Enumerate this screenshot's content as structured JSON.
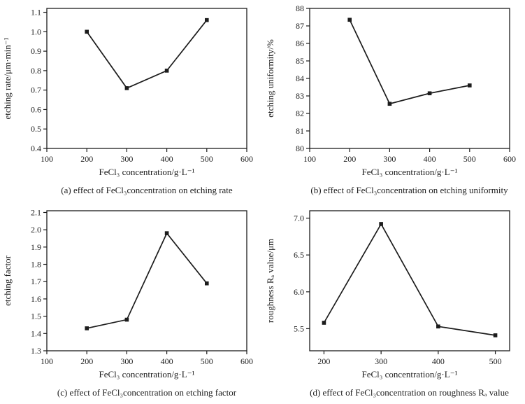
{
  "page": {
    "background": "#ffffff",
    "line_color": "#1c1c1c",
    "text_color": "#1c1c1c"
  },
  "chart_data": [
    {
      "id": "a",
      "type": "line",
      "marker": "square",
      "x": [
        200,
        300,
        400,
        500
      ],
      "values": [
        1.0,
        0.71,
        0.8,
        1.06
      ],
      "xlabel": "FeCl₃ concentration/g·L⁻¹",
      "ylabel": "etching rate/μm·min⁻¹",
      "caption": "(a) effect of FeCl₃concentration on etching rate",
      "xlim": [
        100,
        600
      ],
      "ylim": [
        0.4,
        1.12
      ],
      "xticks": [
        100,
        200,
        300,
        400,
        500,
        600
      ],
      "xtick_labels": [
        "100",
        "200",
        "300",
        "400",
        "500",
        "600"
      ],
      "yticks": [
        0.4,
        0.5,
        0.6,
        0.7,
        0.8,
        0.9,
        1.0,
        1.1
      ],
      "ytick_labels": [
        "0.4",
        "0.5",
        "0.6",
        "0.7",
        "0.8",
        "0.9",
        "1.0",
        "1.1"
      ],
      "grid": false,
      "legend": "none"
    },
    {
      "id": "b",
      "type": "line",
      "marker": "square",
      "x": [
        200,
        300,
        400,
        500
      ],
      "values": [
        87.35,
        82.55,
        83.15,
        83.6
      ],
      "xlabel": "FeCl₃ concentration/g·L⁻¹",
      "ylabel": "etching uniformity/%",
      "caption": "(b) effect of FeCl₃concentration on etching uniformity",
      "xlim": [
        100,
        600
      ],
      "ylim": [
        80,
        88
      ],
      "xticks": [
        100,
        200,
        300,
        400,
        500,
        600
      ],
      "xtick_labels": [
        "100",
        "200",
        "300",
        "400",
        "500",
        "600"
      ],
      "yticks": [
        80,
        81,
        82,
        83,
        84,
        85,
        86,
        87,
        88
      ],
      "ytick_labels": [
        "80",
        "81",
        "82",
        "83",
        "84",
        "85",
        "86",
        "87",
        "88"
      ],
      "grid": false,
      "legend": "none"
    },
    {
      "id": "c",
      "type": "line",
      "marker": "square",
      "x": [
        200,
        300,
        400,
        500
      ],
      "values": [
        1.43,
        1.48,
        1.98,
        1.69
      ],
      "xlabel": "FeCl₃ concentration/g·L⁻¹",
      "ylabel": "etching factor",
      "caption": "(c) effect of FeCl₃concentration on etching factor",
      "xlim": [
        100,
        600
      ],
      "ylim": [
        1.3,
        2.11
      ],
      "xticks": [
        100,
        200,
        300,
        400,
        500,
        600
      ],
      "xtick_labels": [
        "100",
        "200",
        "300",
        "400",
        "500",
        "600"
      ],
      "yticks": [
        1.3,
        1.4,
        1.5,
        1.6,
        1.7,
        1.8,
        1.9,
        2.0,
        2.1
      ],
      "ytick_labels": [
        "1.3",
        "1.4",
        "1.5",
        "1.6",
        "1.7",
        "1.8",
        "1.9",
        "2.0",
        "2.1"
      ],
      "grid": false,
      "legend": "none"
    },
    {
      "id": "d",
      "type": "line",
      "marker": "square",
      "x": [
        200,
        300,
        400,
        500
      ],
      "values": [
        5.58,
        6.92,
        5.53,
        5.41
      ],
      "xlabel": "FeCl₃ concentration/g·L⁻¹",
      "ylabel": "roughness Rₐ value/μm",
      "caption": "(d) effect of FeCl₃concentration on roughness Rₐ value",
      "xlim": [
        175,
        525
      ],
      "ylim": [
        5.2,
        7.1
      ],
      "xticks": [
        200,
        300,
        400,
        500
      ],
      "xtick_labels": [
        "200",
        "300",
        "400",
        "500"
      ],
      "yticks": [
        5.5,
        6.0,
        6.5,
        7.0
      ],
      "ytick_labels": [
        "5.5",
        "6.0",
        "6.5",
        "7.0"
      ],
      "grid": false,
      "legend": "none"
    }
  ]
}
